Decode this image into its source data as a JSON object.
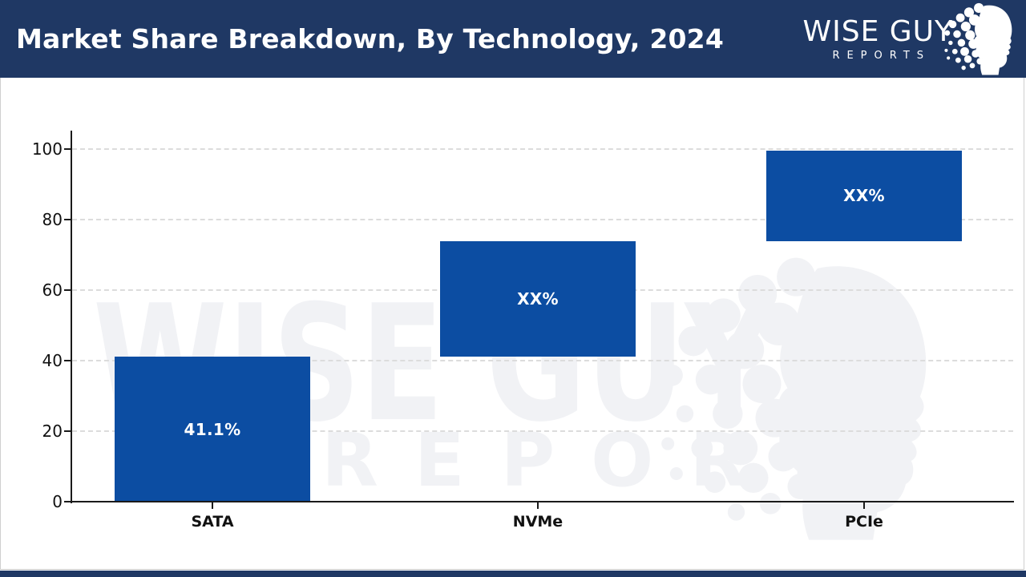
{
  "header": {
    "title": "Market Share Breakdown, By Technology, 2024",
    "background_color": "#1F3864",
    "logo": {
      "line1": "WISE GUY",
      "line2": "REPORTS",
      "face_icon": "dotted-head-profile"
    }
  },
  "watermark": {
    "line1": "WISE GUY",
    "line2": "REPORTS",
    "color": "#F1F2F5"
  },
  "chart_data": {
    "type": "bar",
    "subtype": "waterfall",
    "title": "Market Share Breakdown, By Technology, 2024",
    "categories": [
      "SATA",
      "NVMe",
      "PCIe"
    ],
    "series": [
      {
        "name": "Market Share",
        "segments": [
          {
            "category": "SATA",
            "start": 0,
            "end": 41.1,
            "label": "41.1%"
          },
          {
            "category": "NVMe",
            "start": 41.1,
            "end": 73.9,
            "label": "XX%"
          },
          {
            "category": "PCIe",
            "start": 73.9,
            "end": 99.6,
            "label": "XX%"
          }
        ]
      }
    ],
    "xlabel": "",
    "ylabel": "",
    "ylim": [
      0,
      100
    ],
    "yticks": [
      0,
      20,
      40,
      60,
      80,
      100
    ],
    "grid": "horizontal-dashed",
    "legend": "none",
    "bar_color": "#0C4DA2",
    "bar_label_color": "#ffffff"
  },
  "footer": {
    "background_color": "#1F3864"
  }
}
